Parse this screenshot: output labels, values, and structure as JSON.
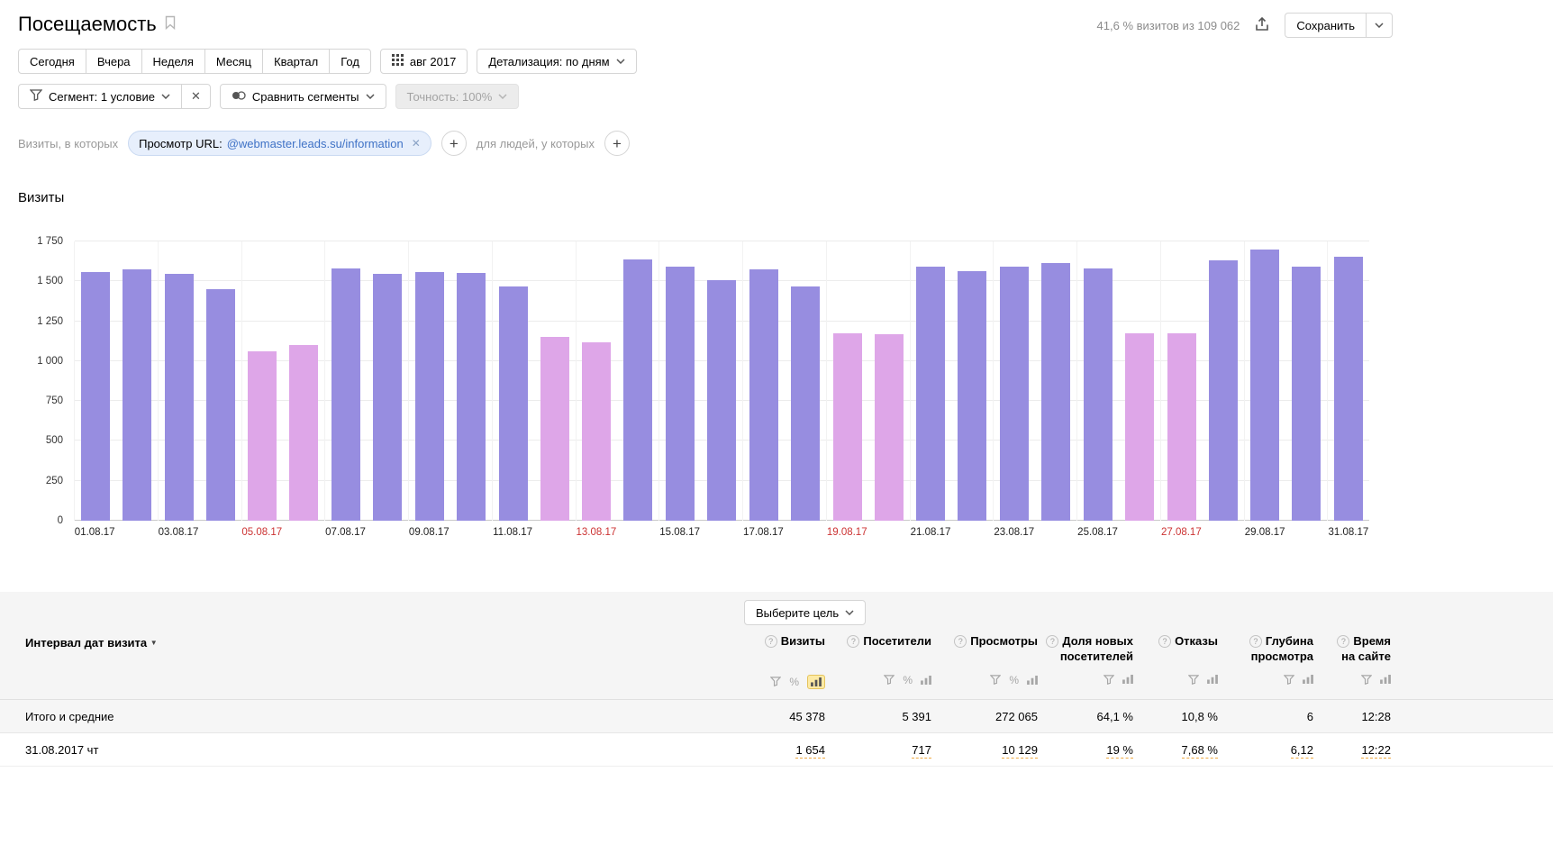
{
  "icons": {
    "plus": "+",
    "close": "✕",
    "sort_desc": "▼"
  },
  "header": {
    "title": "Посещаемость",
    "visits_share": "41,6 % визитов из 109 062",
    "save_label": "Сохранить"
  },
  "toolbar": {
    "periods": [
      "Сегодня",
      "Вчера",
      "Неделя",
      "Месяц",
      "Квартал",
      "Год"
    ],
    "calendar_label": "авг 2017",
    "detail_label": "Детализация: по дням"
  },
  "segment_bar": {
    "segment_label": "Сегмент: 1 условие",
    "compare_label": "Сравнить сегменты",
    "accuracy_label": "Точность: 100%"
  },
  "filter_bar": {
    "visits_prefix": "Визиты, в которых",
    "chip_label": "Просмотр URL:",
    "chip_value": "@webmaster.leads.su/information",
    "people_label": "для людей, у которых"
  },
  "chart_section": {
    "title": "Визиты"
  },
  "chart_data": {
    "type": "bar",
    "title": "Визиты",
    "ylabel": "",
    "xlabel": "",
    "ylim": [
      0,
      1750
    ],
    "ytick_step": 250,
    "x": [
      "01.08.17",
      "02.08.17",
      "03.08.17",
      "04.08.17",
      "05.08.17",
      "06.08.17",
      "07.08.17",
      "08.08.17",
      "09.08.17",
      "10.08.17",
      "11.08.17",
      "12.08.17",
      "13.08.17",
      "14.08.17",
      "15.08.17",
      "16.08.17",
      "17.08.17",
      "18.08.17",
      "19.08.17",
      "20.08.17",
      "21.08.17",
      "22.08.17",
      "23.08.17",
      "24.08.17",
      "25.08.17",
      "26.08.17",
      "27.08.17",
      "28.08.17",
      "29.08.17",
      "30.08.17",
      "31.08.17"
    ],
    "values": [
      1560,
      1575,
      1545,
      1450,
      1060,
      1100,
      1580,
      1545,
      1560,
      1550,
      1470,
      1150,
      1120,
      1635,
      1590,
      1505,
      1575,
      1470,
      1175,
      1170,
      1590,
      1565,
      1590,
      1615,
      1580,
      1175,
      1175,
      1630,
      1700,
      1590,
      1654
    ],
    "weekend_indices": [
      4,
      5,
      11,
      12,
      18,
      19,
      25,
      26
    ],
    "label_every": 2,
    "red_label_indices": [
      4,
      12,
      18,
      26
    ],
    "bar_color": "#978de0",
    "weekend_bar_color": "#dea6e8",
    "grid": true,
    "legend": false
  },
  "table": {
    "goal_button": "Выберите цель",
    "row_header": "Интервал дат визита",
    "columns": [
      {
        "label": "Визиты",
        "icons": [
          "filter",
          "percent",
          "chart"
        ],
        "active": "chart"
      },
      {
        "label": "Посетители",
        "icons": [
          "filter",
          "percent",
          "chart"
        ]
      },
      {
        "label": "Просмотры",
        "icons": [
          "filter",
          "percent",
          "chart"
        ]
      },
      {
        "label": "Доля новых посетителей",
        "icons": [
          "filter",
          "chart"
        ]
      },
      {
        "label": "Отказы",
        "icons": [
          "filter",
          "chart"
        ]
      },
      {
        "label": "Глубина просмотра",
        "icons": [
          "filter",
          "chart"
        ]
      },
      {
        "label": "Время на сайте",
        "icons": [
          "filter",
          "chart"
        ]
      }
    ],
    "totals": {
      "label": "Итого и средние",
      "values": [
        "45 378",
        "5 391",
        "272 065",
        "64,1 %",
        "10,8 %",
        "6",
        "12:28"
      ]
    },
    "rows": [
      {
        "label": "31.08.2017 чт",
        "values": [
          "1 654",
          "717",
          "10 129",
          "19 %",
          "7,68 %",
          "6,12",
          "12:22"
        ]
      }
    ]
  }
}
